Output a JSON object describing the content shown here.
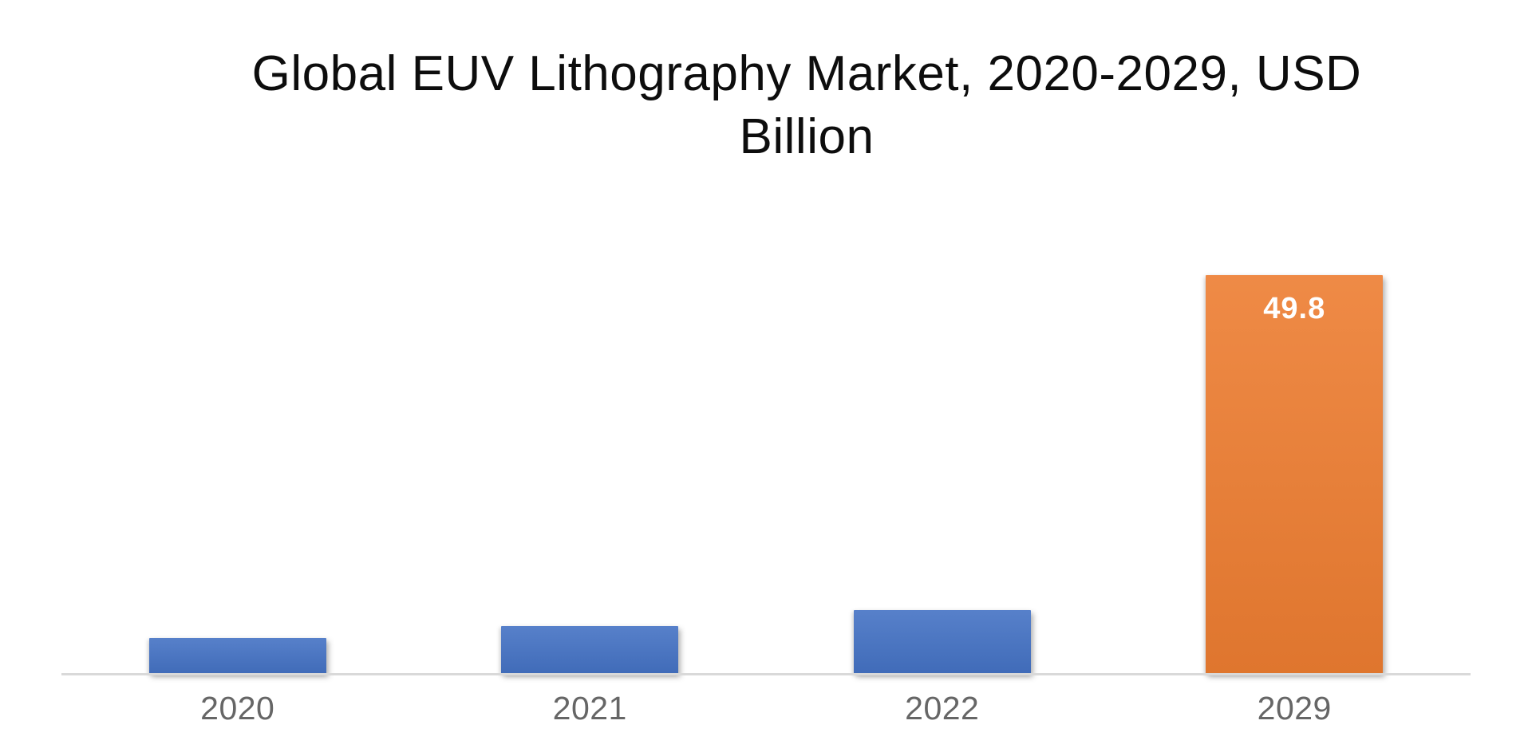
{
  "chart_data": {
    "type": "bar",
    "title": "Global EUV Lithography Market, 2020-2029, USD Billion",
    "title_lines": [
      "Global EUV Lithography Market, 2020-2029, USD",
      "Billion"
    ],
    "categories": [
      "2020",
      "2021",
      "2022",
      "2029"
    ],
    "values": [
      4.7,
      6.1,
      7.9,
      49.8
    ],
    "data_labels": [
      "",
      "",
      "",
      "49.8"
    ],
    "xlabel": "",
    "ylabel": "",
    "ylim": [
      0,
      49.8
    ],
    "grid": false,
    "legend": false,
    "y_axis_visible": false,
    "bar_colors": [
      "#4472C4",
      "#4472C4",
      "#4472C4",
      "#ED7D31"
    ],
    "colors": {
      "title": "#0D0D0D",
      "tick_label": "#666666",
      "data_label": "#FFFFFF",
      "axis_line": "#D9D9D9",
      "background": "#FFFFFF"
    }
  }
}
